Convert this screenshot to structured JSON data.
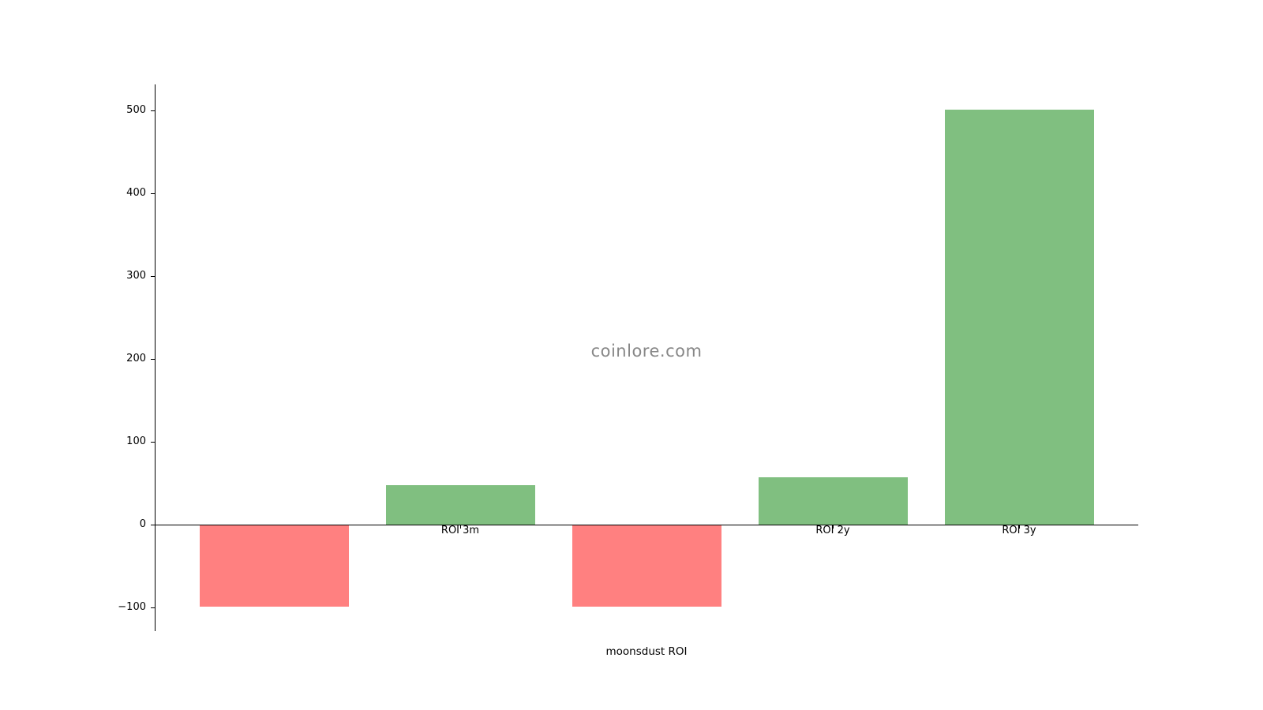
{
  "watermark": "coinlore.com",
  "axis_title": "moonsdust ROI",
  "colors": {
    "positive_bar": "#80bf80",
    "negative_bar": "#ff8080",
    "watermark": "#878787",
    "axis": "#000000"
  },
  "chart_data": {
    "type": "bar",
    "title": "",
    "xlabel": "moonsdust ROI",
    "ylabel": "",
    "categories": [
      "",
      "ROI 3m",
      "",
      "ROI 2y",
      "ROI 3y"
    ],
    "values": [
      -99,
      48,
      -99,
      57,
      501
    ],
    "bar_colors": [
      "#ff8080",
      "#80bf80",
      "#ff8080",
      "#80bf80",
      "#80bf80"
    ],
    "yticks": [
      500,
      400,
      300,
      200,
      100,
      0,
      -100
    ],
    "ylim": [
      -128,
      532
    ],
    "grid": false,
    "legend": null,
    "watermark": "coinlore.com",
    "notes": "x tick labels for the two negative categories are hidden behind the red bars; spines drawn above bars, ticks/labels below bars"
  }
}
